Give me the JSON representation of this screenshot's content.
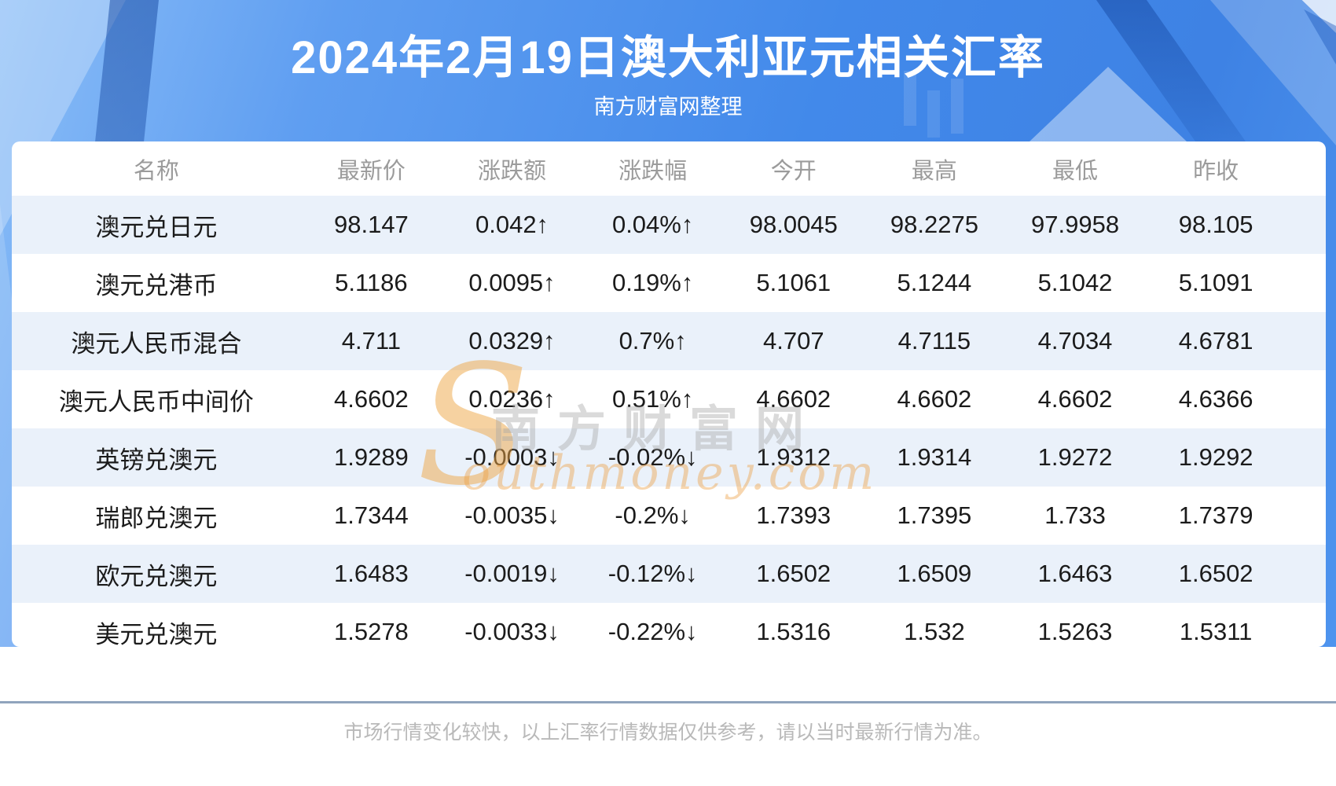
{
  "header": {
    "title": "2024年2月19日澳大利亚元相关汇率",
    "subtitle": "南方财富网整理"
  },
  "chart_data": {
    "type": "table",
    "title": "2024年2月19日澳大利亚元相关汇率",
    "columns": [
      "名称",
      "最新价",
      "涨跌额",
      "涨跌幅",
      "今开",
      "最高",
      "最低",
      "昨收"
    ],
    "rows": [
      {
        "name": "澳元兑日元",
        "latest": "98.147",
        "change": "0.042↑",
        "pct": "0.04%↑",
        "open": "98.0045",
        "high": "98.2275",
        "low": "97.9958",
        "prev": "98.105",
        "trend": "up"
      },
      {
        "name": "澳元兑港币",
        "latest": "5.1186",
        "change": "0.0095↑",
        "pct": "0.19%↑",
        "open": "5.1061",
        "high": "5.1244",
        "low": "5.1042",
        "prev": "5.1091",
        "trend": "up"
      },
      {
        "name": "澳元人民币混合",
        "latest": "4.711",
        "change": "0.0329↑",
        "pct": "0.7%↑",
        "open": "4.707",
        "high": "4.7115",
        "low": "4.7034",
        "prev": "4.6781",
        "trend": "up"
      },
      {
        "name": "澳元人民币中间价",
        "latest": "4.6602",
        "change": "0.0236↑",
        "pct": "0.51%↑",
        "open": "4.6602",
        "high": "4.6602",
        "low": "4.6602",
        "prev": "4.6366",
        "trend": "up"
      },
      {
        "name": "英镑兑澳元",
        "latest": "1.9289",
        "change": "-0.0003↓",
        "pct": "-0.02%↓",
        "open": "1.9312",
        "high": "1.9314",
        "low": "1.9272",
        "prev": "1.9292",
        "trend": "down"
      },
      {
        "name": "瑞郎兑澳元",
        "latest": "1.7344",
        "change": "-0.0035↓",
        "pct": "-0.2%↓",
        "open": "1.7393",
        "high": "1.7395",
        "low": "1.733",
        "prev": "1.7379",
        "trend": "down"
      },
      {
        "name": "欧元兑澳元",
        "latest": "1.6483",
        "change": "-0.0019↓",
        "pct": "-0.12%↓",
        "open": "1.6502",
        "high": "1.6509",
        "low": "1.6463",
        "prev": "1.6502",
        "trend": "down"
      },
      {
        "name": "美元兑澳元",
        "latest": "1.5278",
        "change": "-0.0033↓",
        "pct": "-0.22%↓",
        "open": "1.5316",
        "high": "1.532",
        "low": "1.5263",
        "prev": "1.5311",
        "trend": "down"
      }
    ]
  },
  "watermark": {
    "initial": "S",
    "cn": "南方财富网",
    "en": "outhmoney.com"
  },
  "footer": {
    "disclaimer": "市场行情变化较快，以上汇率行情数据仅供参考，请以当时最新行情为准。"
  },
  "colors": {
    "up": "#f40000",
    "down": "#1ea11e",
    "row_alt": "#eaf1fa",
    "hero_blue": "#4289ea",
    "divider": "#90a4bd"
  }
}
